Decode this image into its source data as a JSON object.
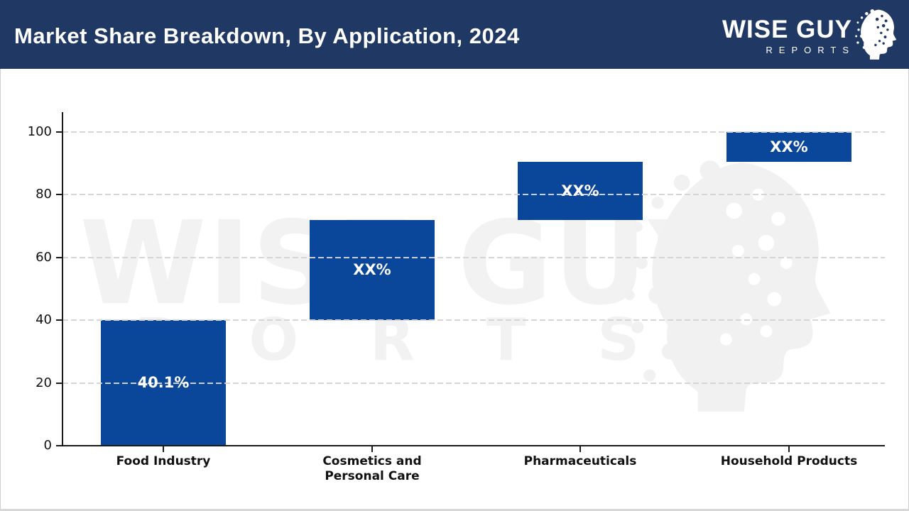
{
  "header": {
    "title": "Market Share Breakdown, By Application, 2024",
    "bg_color": "#1f3864",
    "logo": {
      "line1": "WISE GUY",
      "line2": "REPORTS"
    }
  },
  "watermark": {
    "line1": "WISE GUY",
    "line2": "P O R T S"
  },
  "chart_data": {
    "type": "bar",
    "subtype": "waterfall",
    "title": "Market Share Breakdown, By Application, 2024",
    "xlabel": "",
    "ylabel": "",
    "ylim": [
      0,
      106
    ],
    "yticks": [
      0,
      20,
      40,
      60,
      80,
      100
    ],
    "grid": "horizontal dashed",
    "legend": "none",
    "bar_color": "#0a4699",
    "bar_label_color": "#ffffff",
    "axis_color": "#1a1a1a",
    "categories": [
      "Food Industry",
      "Cosmetics and\nPersonal Care",
      "Pharmaceuticals",
      "Household Products"
    ],
    "segments": [
      {
        "category": "Food Industry",
        "start": 0,
        "end": 40.1,
        "label": "40.1%"
      },
      {
        "category": "Cosmetics and Personal Care",
        "start": 40.1,
        "end": 72,
        "label": "XX%"
      },
      {
        "category": "Pharmaceuticals",
        "start": 72,
        "end": 90.5,
        "label": "XX%"
      },
      {
        "category": "Household Products",
        "start": 90.5,
        "end": 100,
        "label": "XX%"
      }
    ]
  }
}
